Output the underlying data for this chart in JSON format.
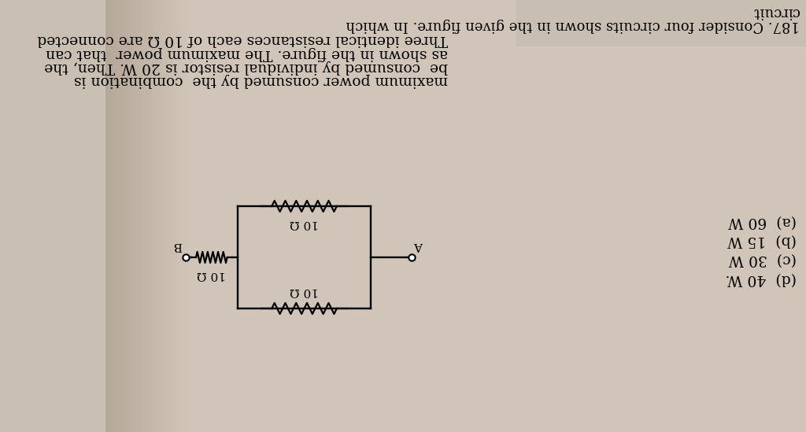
{
  "bg_color": "#c9bfb2",
  "page_color": "#d0c5b8",
  "shadow_color": "#a09080",
  "top_text1": "circuit",
  "top_text2": "187. Consider four circuits shown in the given figure. In which",
  "body_line1": "Three identical resistances each of 10 Ω are connected",
  "body_line2": "as shown in the figure. The maximum power  that can",
  "body_line3": "be  consumed by individual resistor is 20 W. Then, the",
  "body_line4": "maximum power consumed by the  combination is",
  "options": [
    "(a)  60 W",
    "(b)  15 W",
    "(c)  30 W",
    "(d)  40 W."
  ],
  "label_A": "A",
  "label_B": "B",
  "r_label": "10 Ω",
  "font_size_body": 13.5,
  "font_size_options": 13.5,
  "font_size_circuit": 11,
  "font_size_top": 13
}
